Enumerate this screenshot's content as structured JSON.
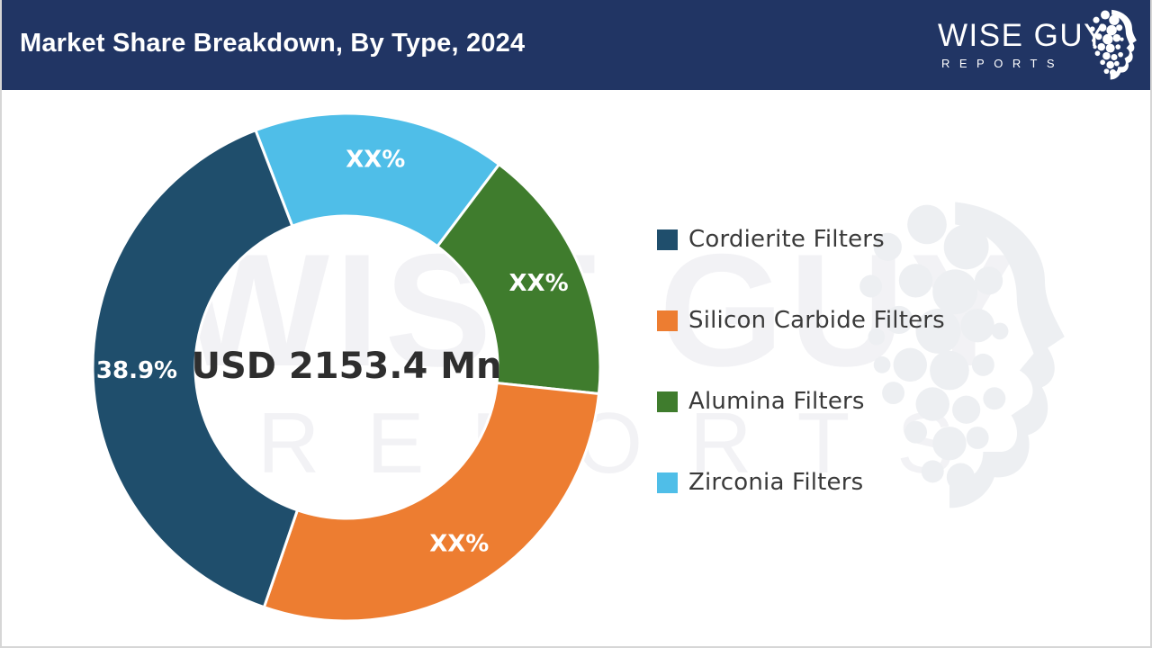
{
  "header": {
    "title": "Market Share Breakdown, By Type, 2024",
    "logo": {
      "line1": "WISE GUY",
      "line2": "REPORTS"
    }
  },
  "watermark": {
    "line1": "WISE GUY",
    "line2": "REPORTS"
  },
  "chart_data": {
    "type": "pie",
    "subtype": "donut",
    "title": "Market Share Breakdown, By Type, 2024",
    "center_label": "USD 2153.4 Mn",
    "start_angle_deg": -21,
    "legend_position": "right",
    "segments": [
      {
        "name": "Zirconia Filters",
        "label": "XX%",
        "value_pct": 16.1,
        "color": "#4fbee8"
      },
      {
        "name": "Alumina Filters",
        "label": "XX%",
        "value_pct": 16.4,
        "color": "#3f7c2d"
      },
      {
        "name": "Silicon Carbide Filters",
        "label": "XX%",
        "value_pct": 28.6,
        "color": "#ed7d31"
      },
      {
        "name": "Cordierite Filters",
        "label": "38.9%",
        "value_pct": 38.9,
        "color": "#1f4e6c"
      }
    ],
    "legend_order": [
      "Cordierite Filters",
      "Silicon Carbide Filters",
      "Alumina Filters",
      "Zirconia Filters"
    ]
  }
}
